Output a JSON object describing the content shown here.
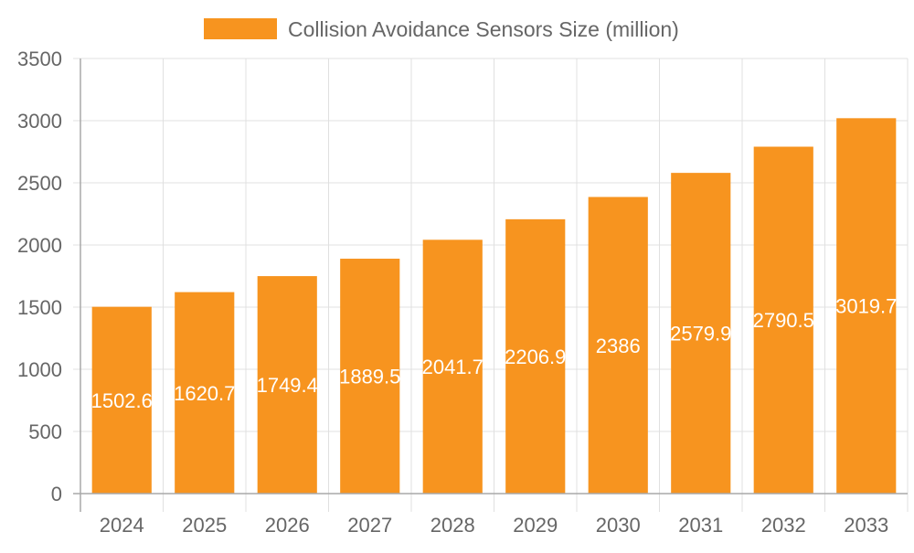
{
  "chart_data": {
    "type": "bar",
    "categories": [
      "2024",
      "2025",
      "2026",
      "2027",
      "2028",
      "2029",
      "2030",
      "2031",
      "2032",
      "2033"
    ],
    "series": [
      {
        "name": "Collision Avoidance Sensors Size (million)",
        "values": [
          1502.6,
          1620.7,
          1749.4,
          1889.5,
          2041.7,
          2206.9,
          2386,
          2579.9,
          2790.5,
          3019.7
        ]
      }
    ],
    "ylim": [
      0,
      3500
    ],
    "yticks": [
      0,
      500,
      1000,
      1500,
      2000,
      2500,
      3000,
      3500
    ],
    "grid": true,
    "legend_position": "top",
    "data_labels": true,
    "colors": {
      "bar": "#F7941F",
      "grid": "#E0E0E0",
      "axis": "#A8A8A8",
      "text": "#666666",
      "label": "#FFFFFF"
    }
  }
}
